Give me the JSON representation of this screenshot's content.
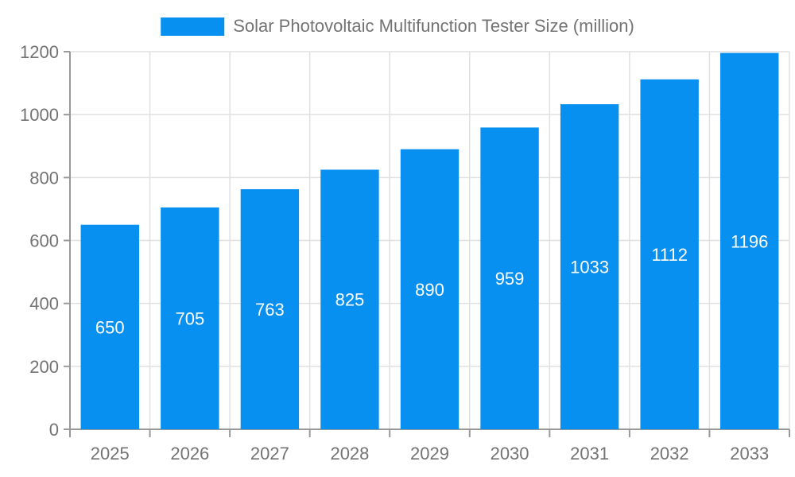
{
  "legend": {
    "label": "Solar Photovoltaic Multifunction Tester Size (million)"
  },
  "colors": {
    "bar": "#0890F0",
    "axis": "#999999",
    "grid": "#E0E0E0",
    "text": "#737373",
    "bar_label": "#FFFFFF",
    "background": "#FFFFFF"
  },
  "chart_data": {
    "type": "bar",
    "title": "Solar Photovoltaic Multifunction Tester Size (million)",
    "categories": [
      "2025",
      "2026",
      "2027",
      "2028",
      "2029",
      "2030",
      "2031",
      "2032",
      "2033"
    ],
    "values": [
      650,
      705,
      763,
      825,
      890,
      959,
      1033,
      1112,
      1196
    ],
    "xlabel": "",
    "ylabel": "",
    "ylim": [
      0,
      1200
    ],
    "ytick_step": 200,
    "yticks": [
      0,
      200,
      400,
      600,
      800,
      1000,
      1200
    ],
    "grid": "on",
    "legend_position": "top-center",
    "value_labels": "inside-center"
  }
}
